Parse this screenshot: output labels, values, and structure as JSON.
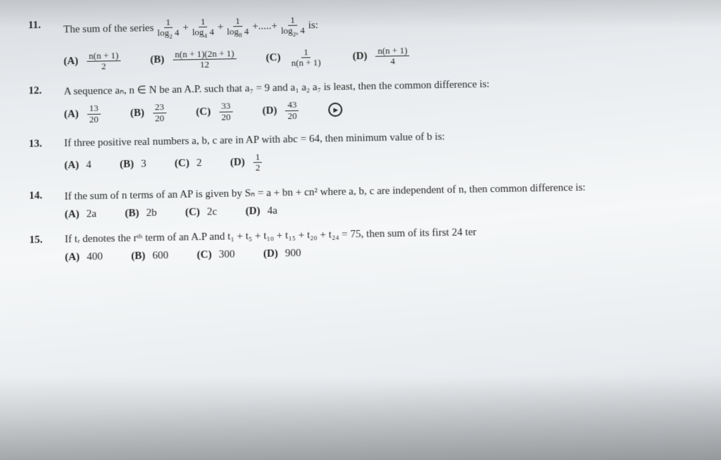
{
  "page": {
    "background_gradient": [
      "#d8dce0",
      "#e8ecef",
      "#f5f7f8",
      "#e8ecef",
      "#c8ccd0"
    ],
    "text_color": "#2a2a2a",
    "font_family": "Georgia, Times New Roman, serif"
  },
  "questions": [
    {
      "num": "11.",
      "text_prefix": "The sum of the series ",
      "series": {
        "terms": [
          {
            "num": "1",
            "den_base": "log",
            "den_sub": "2",
            "den_arg": "4"
          },
          {
            "num": "1",
            "den_base": "log",
            "den_sub": "4",
            "den_arg": "4"
          },
          {
            "num": "1",
            "den_base": "log",
            "den_sub": "8",
            "den_arg": "4"
          },
          {
            "ellipsis": "....."
          },
          {
            "num": "1",
            "den_base": "log",
            "den_sub": "2ⁿ",
            "den_arg": "4"
          }
        ],
        "suffix": " is:"
      },
      "options": [
        {
          "label": "(A)",
          "frac": {
            "num": "n(n + 1)",
            "den": "2"
          }
        },
        {
          "label": "(B)",
          "frac": {
            "num": "n(n + 1)(2n + 1)",
            "den": "12"
          }
        },
        {
          "label": "(C)",
          "frac": {
            "num": "1",
            "den": "n(n + 1)"
          }
        },
        {
          "label": "(D)",
          "frac": {
            "num": "n(n + 1)",
            "den": "4"
          }
        }
      ]
    },
    {
      "num": "12.",
      "text": "A sequence aₙ, n ∈ N be an A.P. such that a₇ = 9 and a₁ a₂ a₇ is least, then the common difference is:",
      "options": [
        {
          "label": "(A)",
          "frac": {
            "num": "13",
            "den": "20"
          }
        },
        {
          "label": "(B)",
          "frac": {
            "num": "23",
            "den": "20"
          }
        },
        {
          "label": "(C)",
          "frac": {
            "num": "33",
            "den": "20"
          }
        },
        {
          "label": "(D)",
          "frac": {
            "num": "43",
            "den": "20"
          }
        }
      ],
      "trailing_icon": "▸"
    },
    {
      "num": "13.",
      "text": "If three positive real numbers a, b, c are in AP with abc = 64, then minimum value of b is:",
      "options": [
        {
          "label": "(A)",
          "value": "4"
        },
        {
          "label": "(B)",
          "value": "3"
        },
        {
          "label": "(C)",
          "value": "2"
        },
        {
          "label": "(D)",
          "frac": {
            "num": "1",
            "den": "2"
          }
        }
      ]
    },
    {
      "num": "14.",
      "text": "If the sum of n terms of an AP is given by Sₙ = a + bn + cn² where a, b, c are independent of n, then common difference is:",
      "options": [
        {
          "label": "(A)",
          "value": "2a"
        },
        {
          "label": "(B)",
          "value": "2b"
        },
        {
          "label": "(C)",
          "value": "2c"
        },
        {
          "label": "(D)",
          "value": "4a"
        }
      ]
    },
    {
      "num": "15.",
      "text": "If tᵣ denotes the rᵗʰ term of an A.P and t₁ + t₅ + t₁₀ + t₁₅ + t₂₀ + t₂₄ = 75, then sum of its first 24 ter",
      "options": [
        {
          "label": "(A)",
          "value": "400"
        },
        {
          "label": "(B)",
          "value": "600"
        },
        {
          "label": "(C)",
          "value": "300"
        },
        {
          "label": "(D)",
          "value": "900"
        }
      ]
    }
  ]
}
